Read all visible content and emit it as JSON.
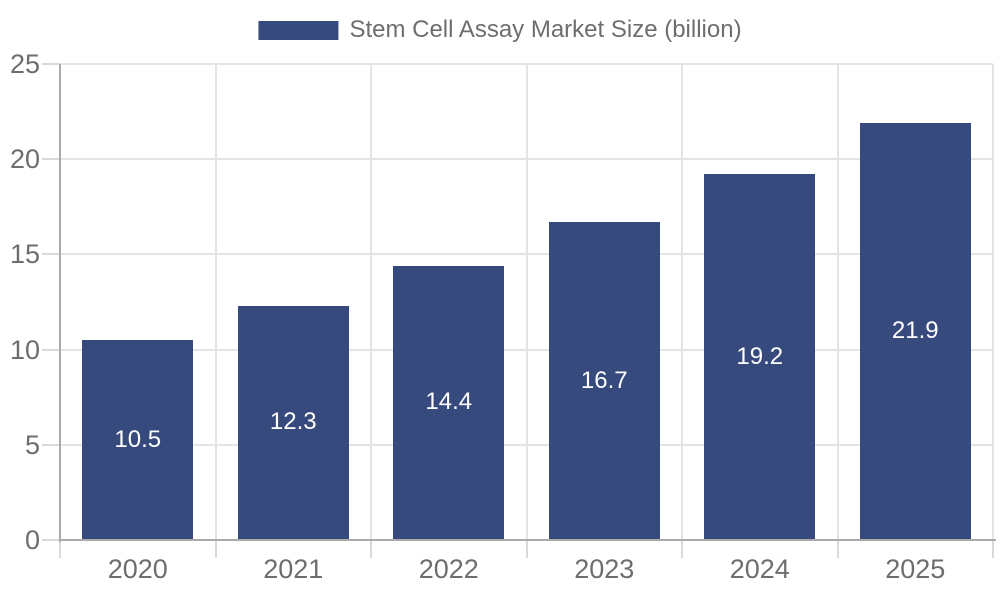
{
  "chart_data": {
    "type": "bar",
    "legend": "Stem Cell Assay Market Size (billion)",
    "categories": [
      "2020",
      "2021",
      "2022",
      "2023",
      "2024",
      "2025"
    ],
    "values": [
      10.5,
      12.3,
      14.4,
      16.7,
      19.2,
      21.9
    ],
    "value_labels": [
      "10.5",
      "12.3",
      "14.4",
      "16.7",
      "19.2",
      "21.9"
    ],
    "ylabel": "",
    "xlabel": "",
    "ylim": [
      0,
      25
    ],
    "yticks": [
      0,
      5,
      10,
      15,
      20,
      25
    ],
    "ytick_labels": [
      "0",
      "5",
      "10",
      "15",
      "20",
      "25"
    ],
    "grid": true,
    "legend_position": "top-center",
    "value_label_position": "inside-center",
    "colors": {
      "bar": "#364a7e",
      "grid": "#e4e4e4",
      "tick": "#d9d9d9",
      "axis": "#aaaaaa",
      "text": "#6e6e6e",
      "value_text": "#ffffff"
    }
  }
}
